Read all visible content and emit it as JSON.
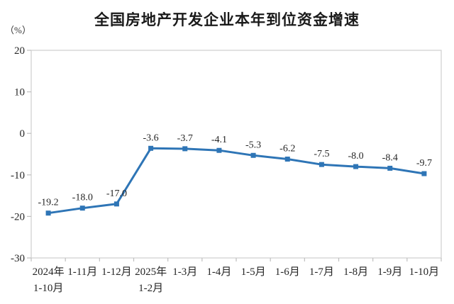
{
  "chart_data": {
    "type": "line",
    "title": "全国房地产开发企业本年到位资金增速",
    "unit": "（%）",
    "categories": [
      "2024年\n1-10月",
      "1-11月",
      "1-12月",
      "2025年\n1-2月",
      "1-3月",
      "1-4月",
      "1-5月",
      "1-6月",
      "1-7月",
      "1-8月",
      "1-9月",
      "1-10月"
    ],
    "values": [
      -19.2,
      -18.0,
      -17.0,
      -3.6,
      -3.7,
      -4.1,
      -5.3,
      -6.2,
      -7.5,
      -8.0,
      -8.4,
      -9.7
    ],
    "point_labels": [
      "-19.2",
      "-18.0",
      "-17.0",
      "-3.6",
      "-3.7",
      "-4.1",
      "-5.3",
      "-6.2",
      "-7.5",
      "-8.0",
      "-8.4",
      "-9.7"
    ],
    "ylim": [
      -30,
      20
    ],
    "yticks": [
      "20",
      "10",
      "0",
      "-10",
      "-20",
      "-30"
    ],
    "ytick_values": [
      20,
      10,
      0,
      -10,
      -20,
      -30
    ],
    "grid": false,
    "legend": "none",
    "line_color": "#2E75B6",
    "marker": "square",
    "axis_color": "#bfbfbf",
    "border_color": "#d2d2d2",
    "label_color": "#262626",
    "title_color": "#1a1a1a"
  }
}
